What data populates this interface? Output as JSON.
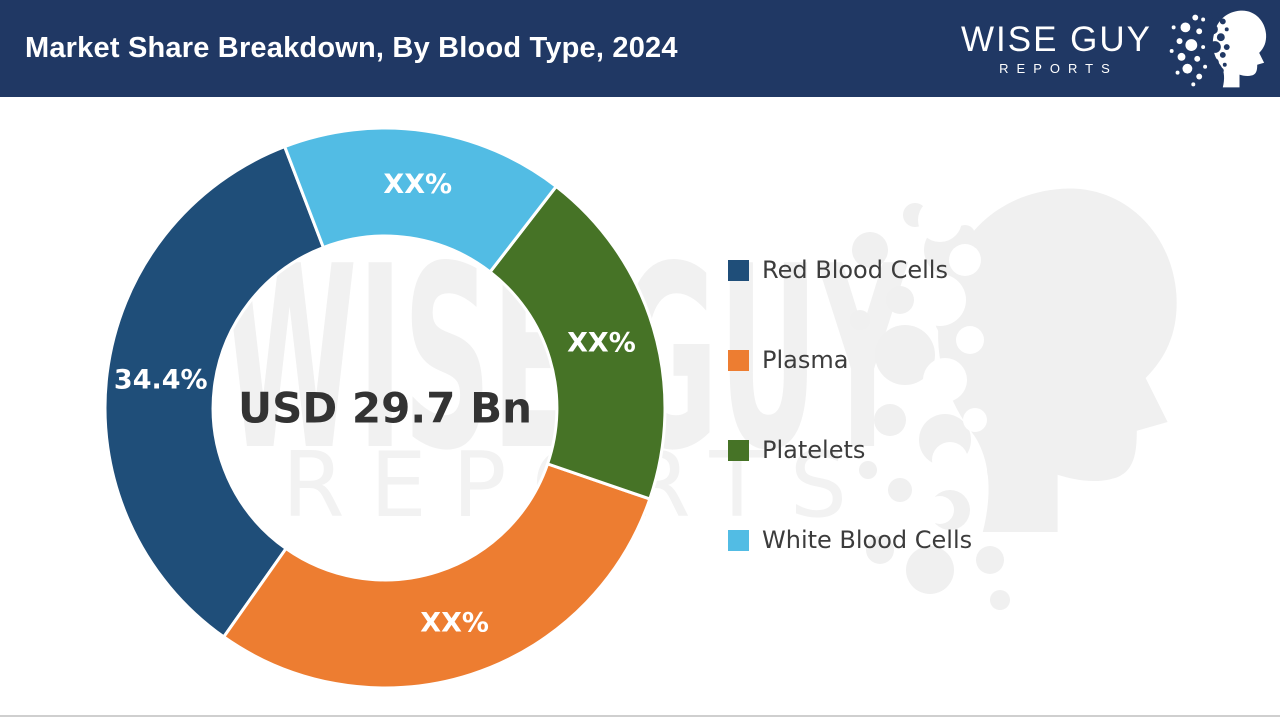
{
  "header": {
    "title": "Market Share Breakdown, By Blood Type, 2024",
    "background_color": "#203864",
    "logo": {
      "brand_line1": "WISE GUY",
      "brand_line2": "REPORTS",
      "icon": "dotted-head-profile-icon"
    }
  },
  "chart_data": {
    "type": "pie",
    "subtype": "donut",
    "title": "Market Share Breakdown, By Blood Type, 2024",
    "center_label": "USD 29.7 Bn",
    "legend_position": "right",
    "start_angle_deg": 111,
    "direction": "counterclockwise",
    "inner_radius_ratio": 0.614,
    "segments": [
      {
        "name": "Red Blood Cells",
        "display_label": "34.4%",
        "value_pct": 34.4,
        "color": "#1F4E79"
      },
      {
        "name": "Plasma",
        "display_label": "XX%",
        "value_pct": 29.5,
        "color": "#ED7D31"
      },
      {
        "name": "Platelets",
        "display_label": "XX%",
        "value_pct": 19.8,
        "color": "#467326"
      },
      {
        "name": "White Blood Cells",
        "display_label": "XX%",
        "value_pct": 16.3,
        "color": "#52BCE4"
      }
    ]
  },
  "watermark": {
    "line1": "WISE GUY",
    "line2": "REPORTS"
  }
}
